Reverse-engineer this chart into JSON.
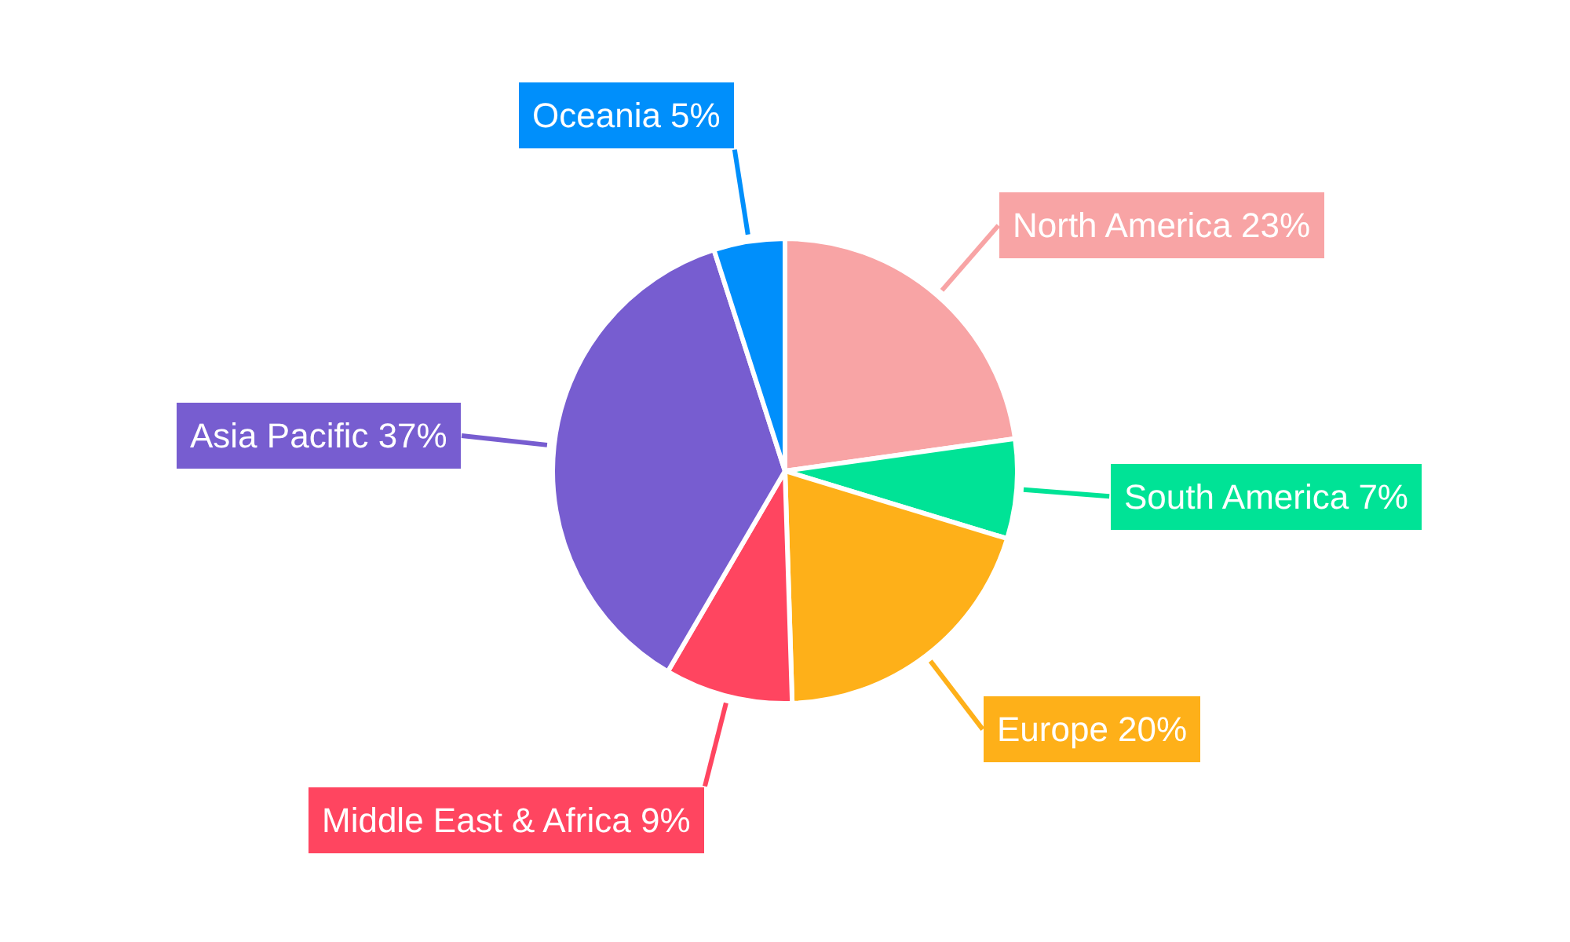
{
  "chart_data": {
    "type": "pie",
    "categories": [
      "North America",
      "South America",
      "Europe",
      "Middle East & Africa",
      "Asia Pacific",
      "Oceania"
    ],
    "values": [
      23,
      7,
      20,
      9,
      37,
      5
    ],
    "value_labels": [
      "23%",
      "7%",
      "20%",
      "9%",
      "37%",
      "5%"
    ],
    "colors": [
      "#f8a4a5",
      "#00e396",
      "#feb019",
      "#ff4560",
      "#775dd0",
      "#008ffb"
    ]
  }
}
